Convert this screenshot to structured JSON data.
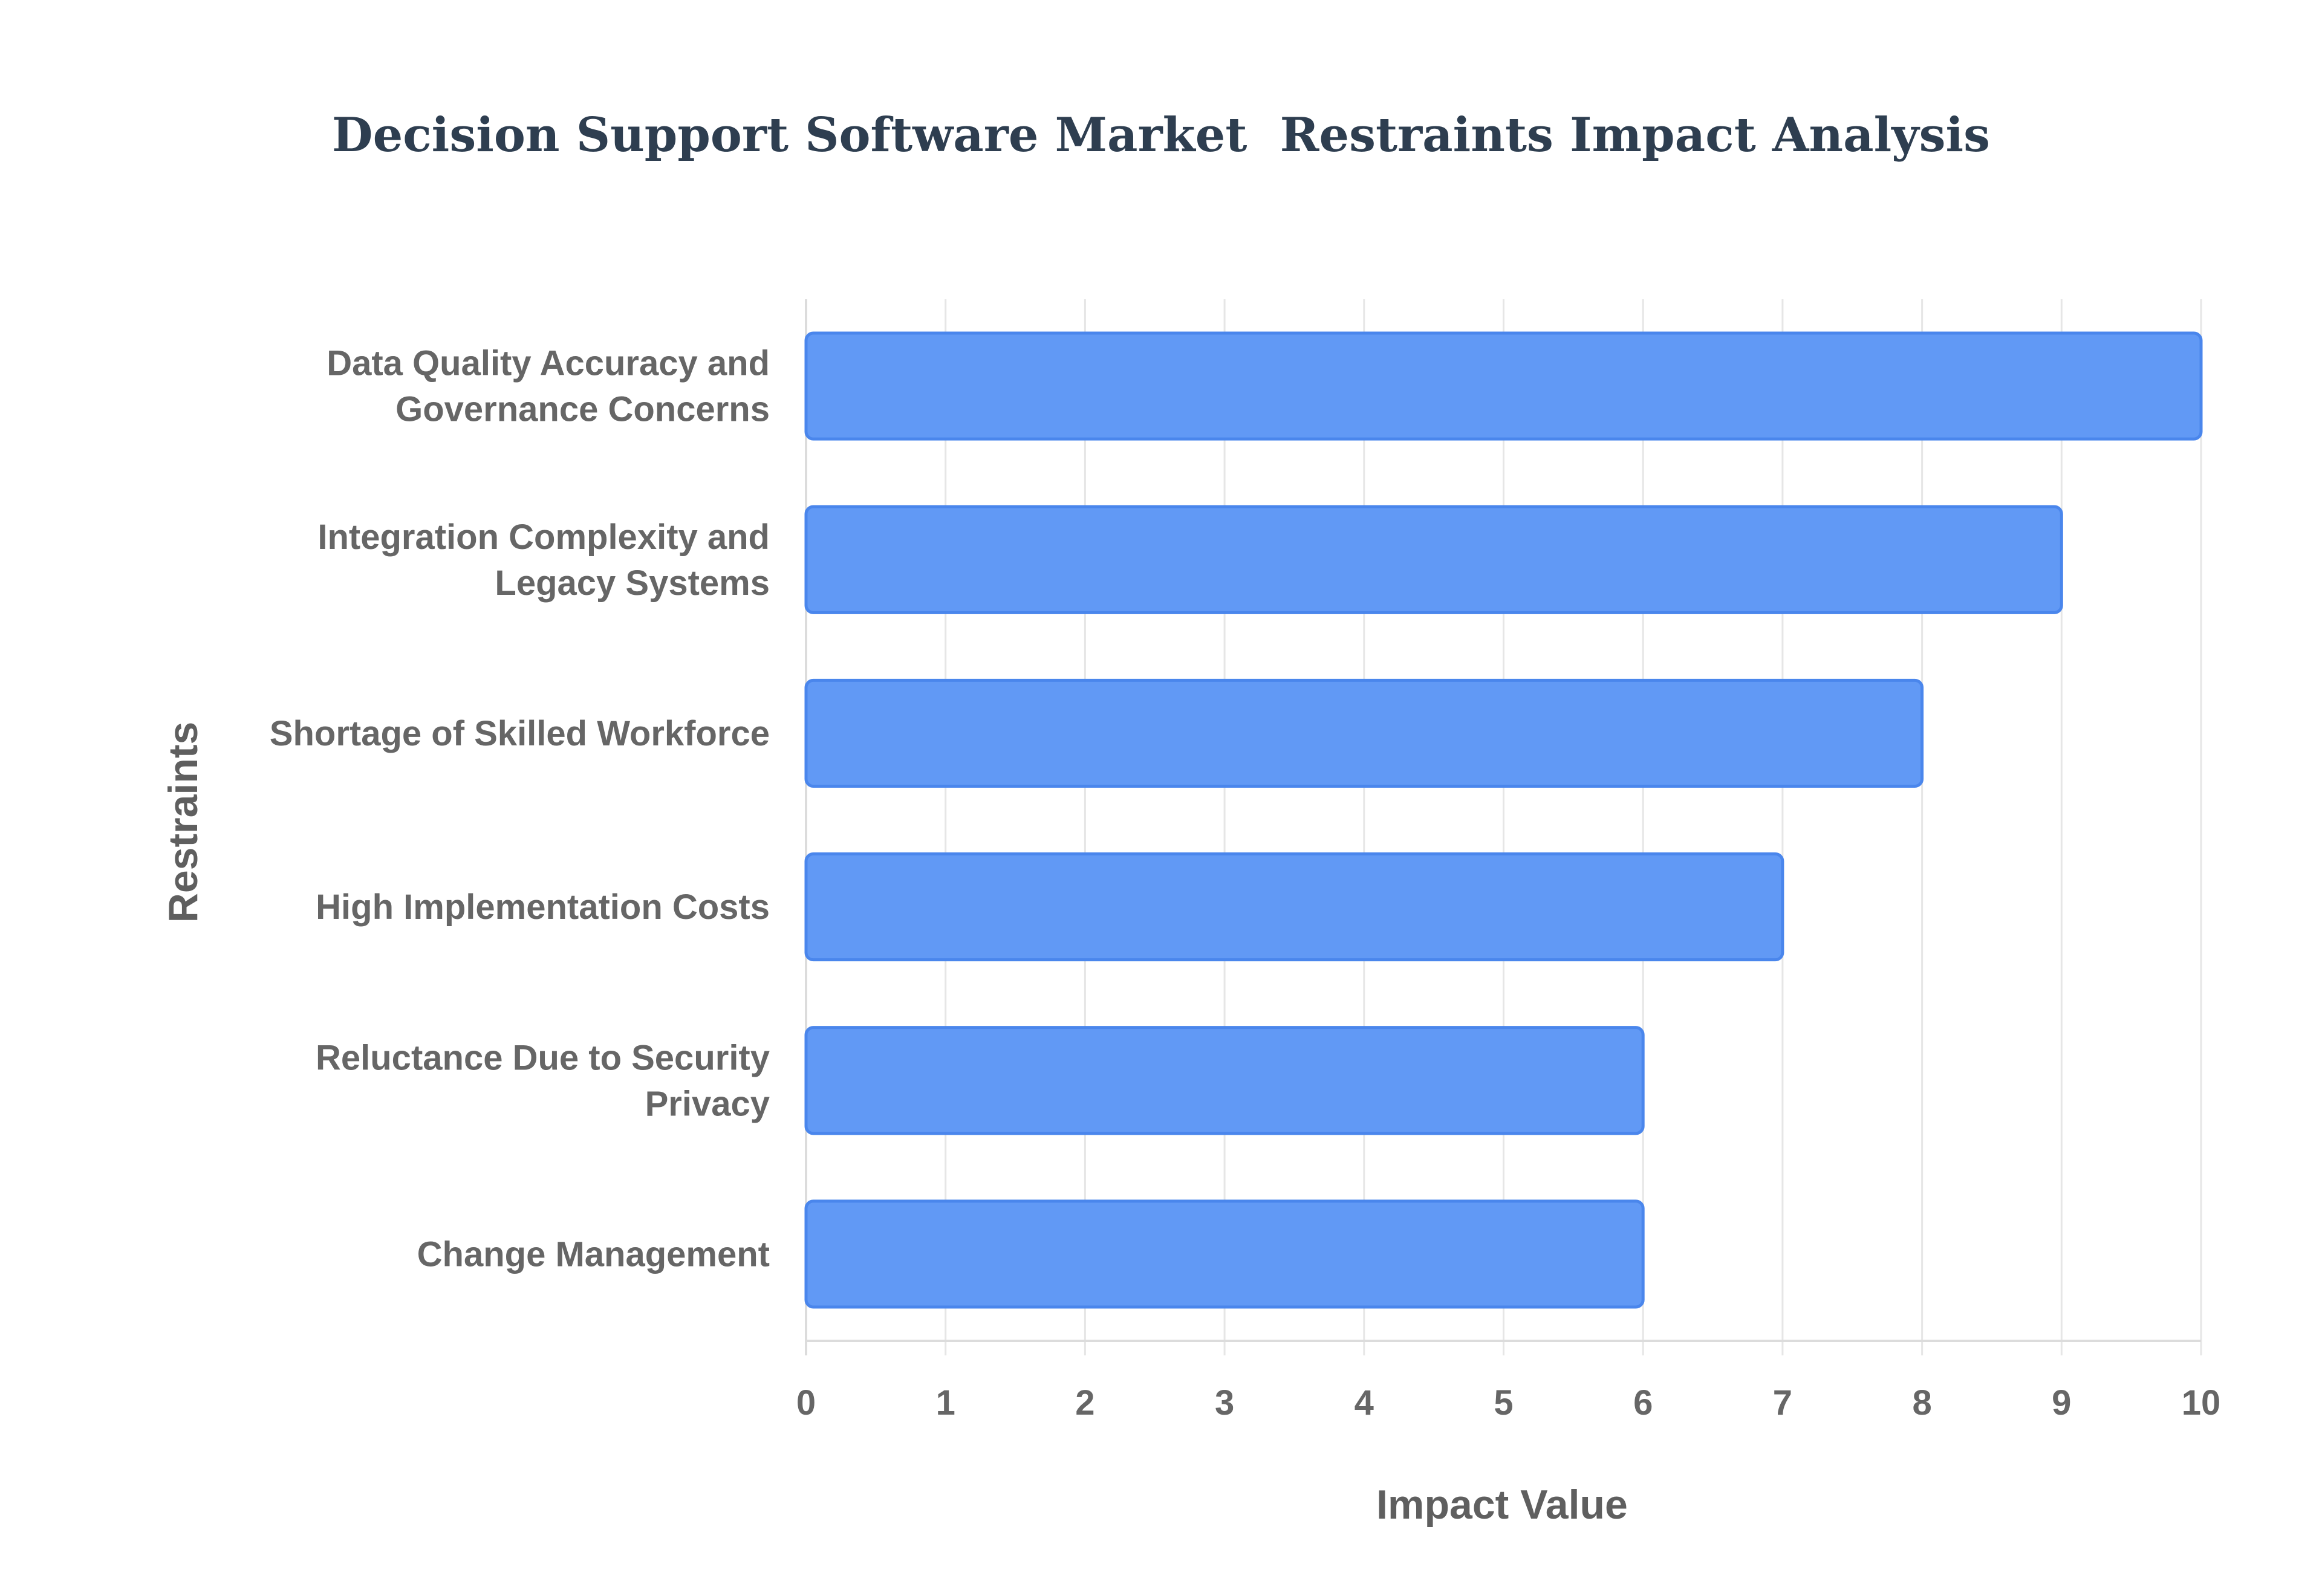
{
  "chart_data": {
    "type": "bar",
    "orientation": "horizontal",
    "title": "Decision Support Software Market  Restraints Impact Analysis",
    "xlabel": "Impact Value",
    "ylabel": "Restraints",
    "categories": [
      [
        "Data Quality Accuracy and",
        "Governance Concerns"
      ],
      [
        "Integration Complexity and",
        "Legacy Systems"
      ],
      [
        "Shortage of Skilled Workforce"
      ],
      [
        "High Implementation Costs"
      ],
      [
        "Reluctance Due to Security",
        "Privacy"
      ],
      [
        "Change Management"
      ]
    ],
    "values": [
      10,
      9,
      8,
      7,
      6,
      6
    ],
    "xlim": [
      0,
      10
    ],
    "xticks": [
      "0",
      "1",
      "2",
      "3",
      "4",
      "5",
      "6",
      "7",
      "8",
      "9",
      "10"
    ],
    "grid": true,
    "legend": "none",
    "bar_color": "#6199f5",
    "bar_edge_color": "#4a86ec"
  }
}
